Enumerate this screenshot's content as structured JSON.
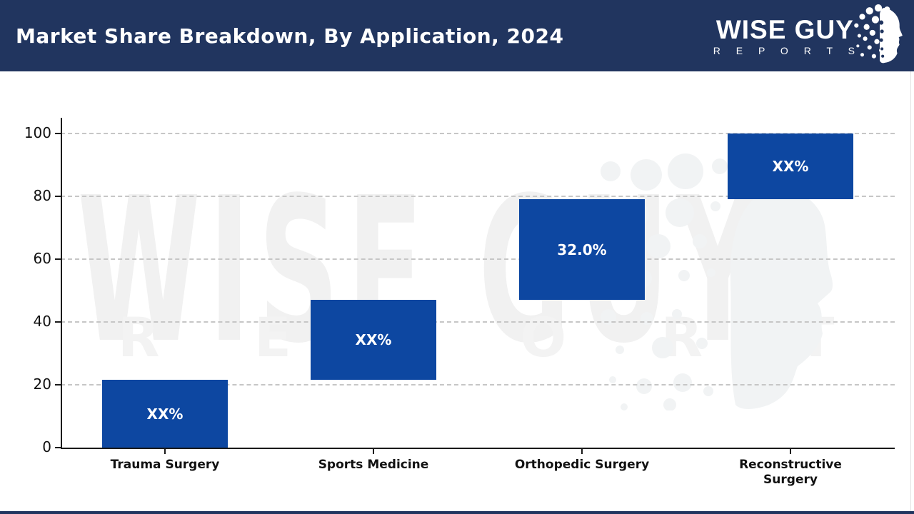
{
  "header": {
    "title": "Market Share Breakdown, By Application, 2024",
    "logo": {
      "brand": "WISE GUY",
      "sub": "R E P O R T S"
    }
  },
  "watermark": {
    "brand": "WISE GUY",
    "sub": "R E P O R T S"
  },
  "chart_data": {
    "type": "bar",
    "subtype": "waterfall",
    "title": "Market Share Breakdown, By Application, 2024",
    "categories": [
      "Trauma Surgery",
      "Sports Medicine",
      "Orthopedic Surgery",
      "Reconstructive Surgery"
    ],
    "segments": [
      {
        "category": "Trauma Surgery",
        "start": 0,
        "end": 21.5,
        "label": "XX%"
      },
      {
        "category": "Sports Medicine",
        "start": 21.5,
        "end": 47,
        "label": "XX%"
      },
      {
        "category": "Orthopedic Surgery",
        "start": 47,
        "end": 79,
        "label": "32.0%"
      },
      {
        "category": "Reconstructive Surgery",
        "start": 79,
        "end": 100,
        "label": "XX%"
      }
    ],
    "yticks": [
      0,
      20,
      40,
      60,
      80,
      100
    ],
    "ylim": [
      0,
      105
    ],
    "grid": "horizontal-dashed",
    "legend": "none",
    "bar_color": "#0d47a1",
    "bar_label_color": "#ffffff"
  },
  "colors": {
    "header_navy": "#21355f",
    "bar_blue": "#0d47a1",
    "axis": "#1a1a1a",
    "grid": "#c6c6c6",
    "watermark": "#f1f1f1",
    "background": "#ffffff"
  }
}
